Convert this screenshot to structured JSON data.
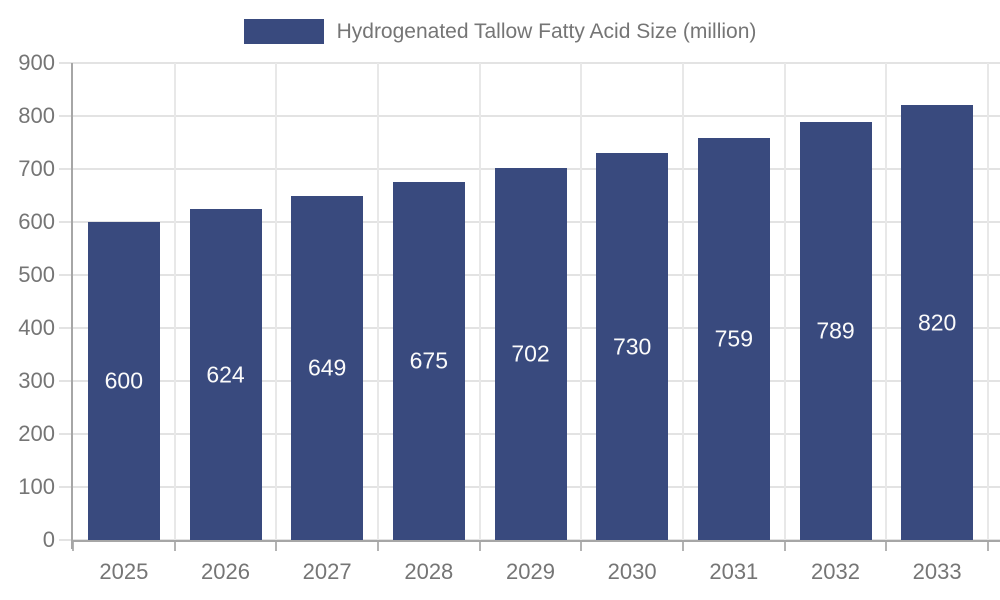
{
  "chart_data": {
    "type": "bar",
    "title": "Hydrogenated Tallow Fatty Acid Size (million)",
    "categories": [
      "2025",
      "2026",
      "2027",
      "2028",
      "2029",
      "2030",
      "2031",
      "2032",
      "2033"
    ],
    "values": [
      600,
      624,
      649,
      675,
      702,
      730,
      759,
      789,
      820
    ],
    "xlabel": "",
    "ylabel": "",
    "ylim": [
      0,
      900
    ],
    "ytick_step": 100,
    "yticks": [
      0,
      100,
      200,
      300,
      400,
      500,
      600,
      700,
      800,
      900
    ],
    "grid": true,
    "legend_position": "top",
    "bar_color": "#394A7E",
    "bar_label_color": "#fbfbfb",
    "axis_text_color": "#757575",
    "gridline_color": "#e3e3e3",
    "axis_line_color": "#a6a6a6"
  }
}
